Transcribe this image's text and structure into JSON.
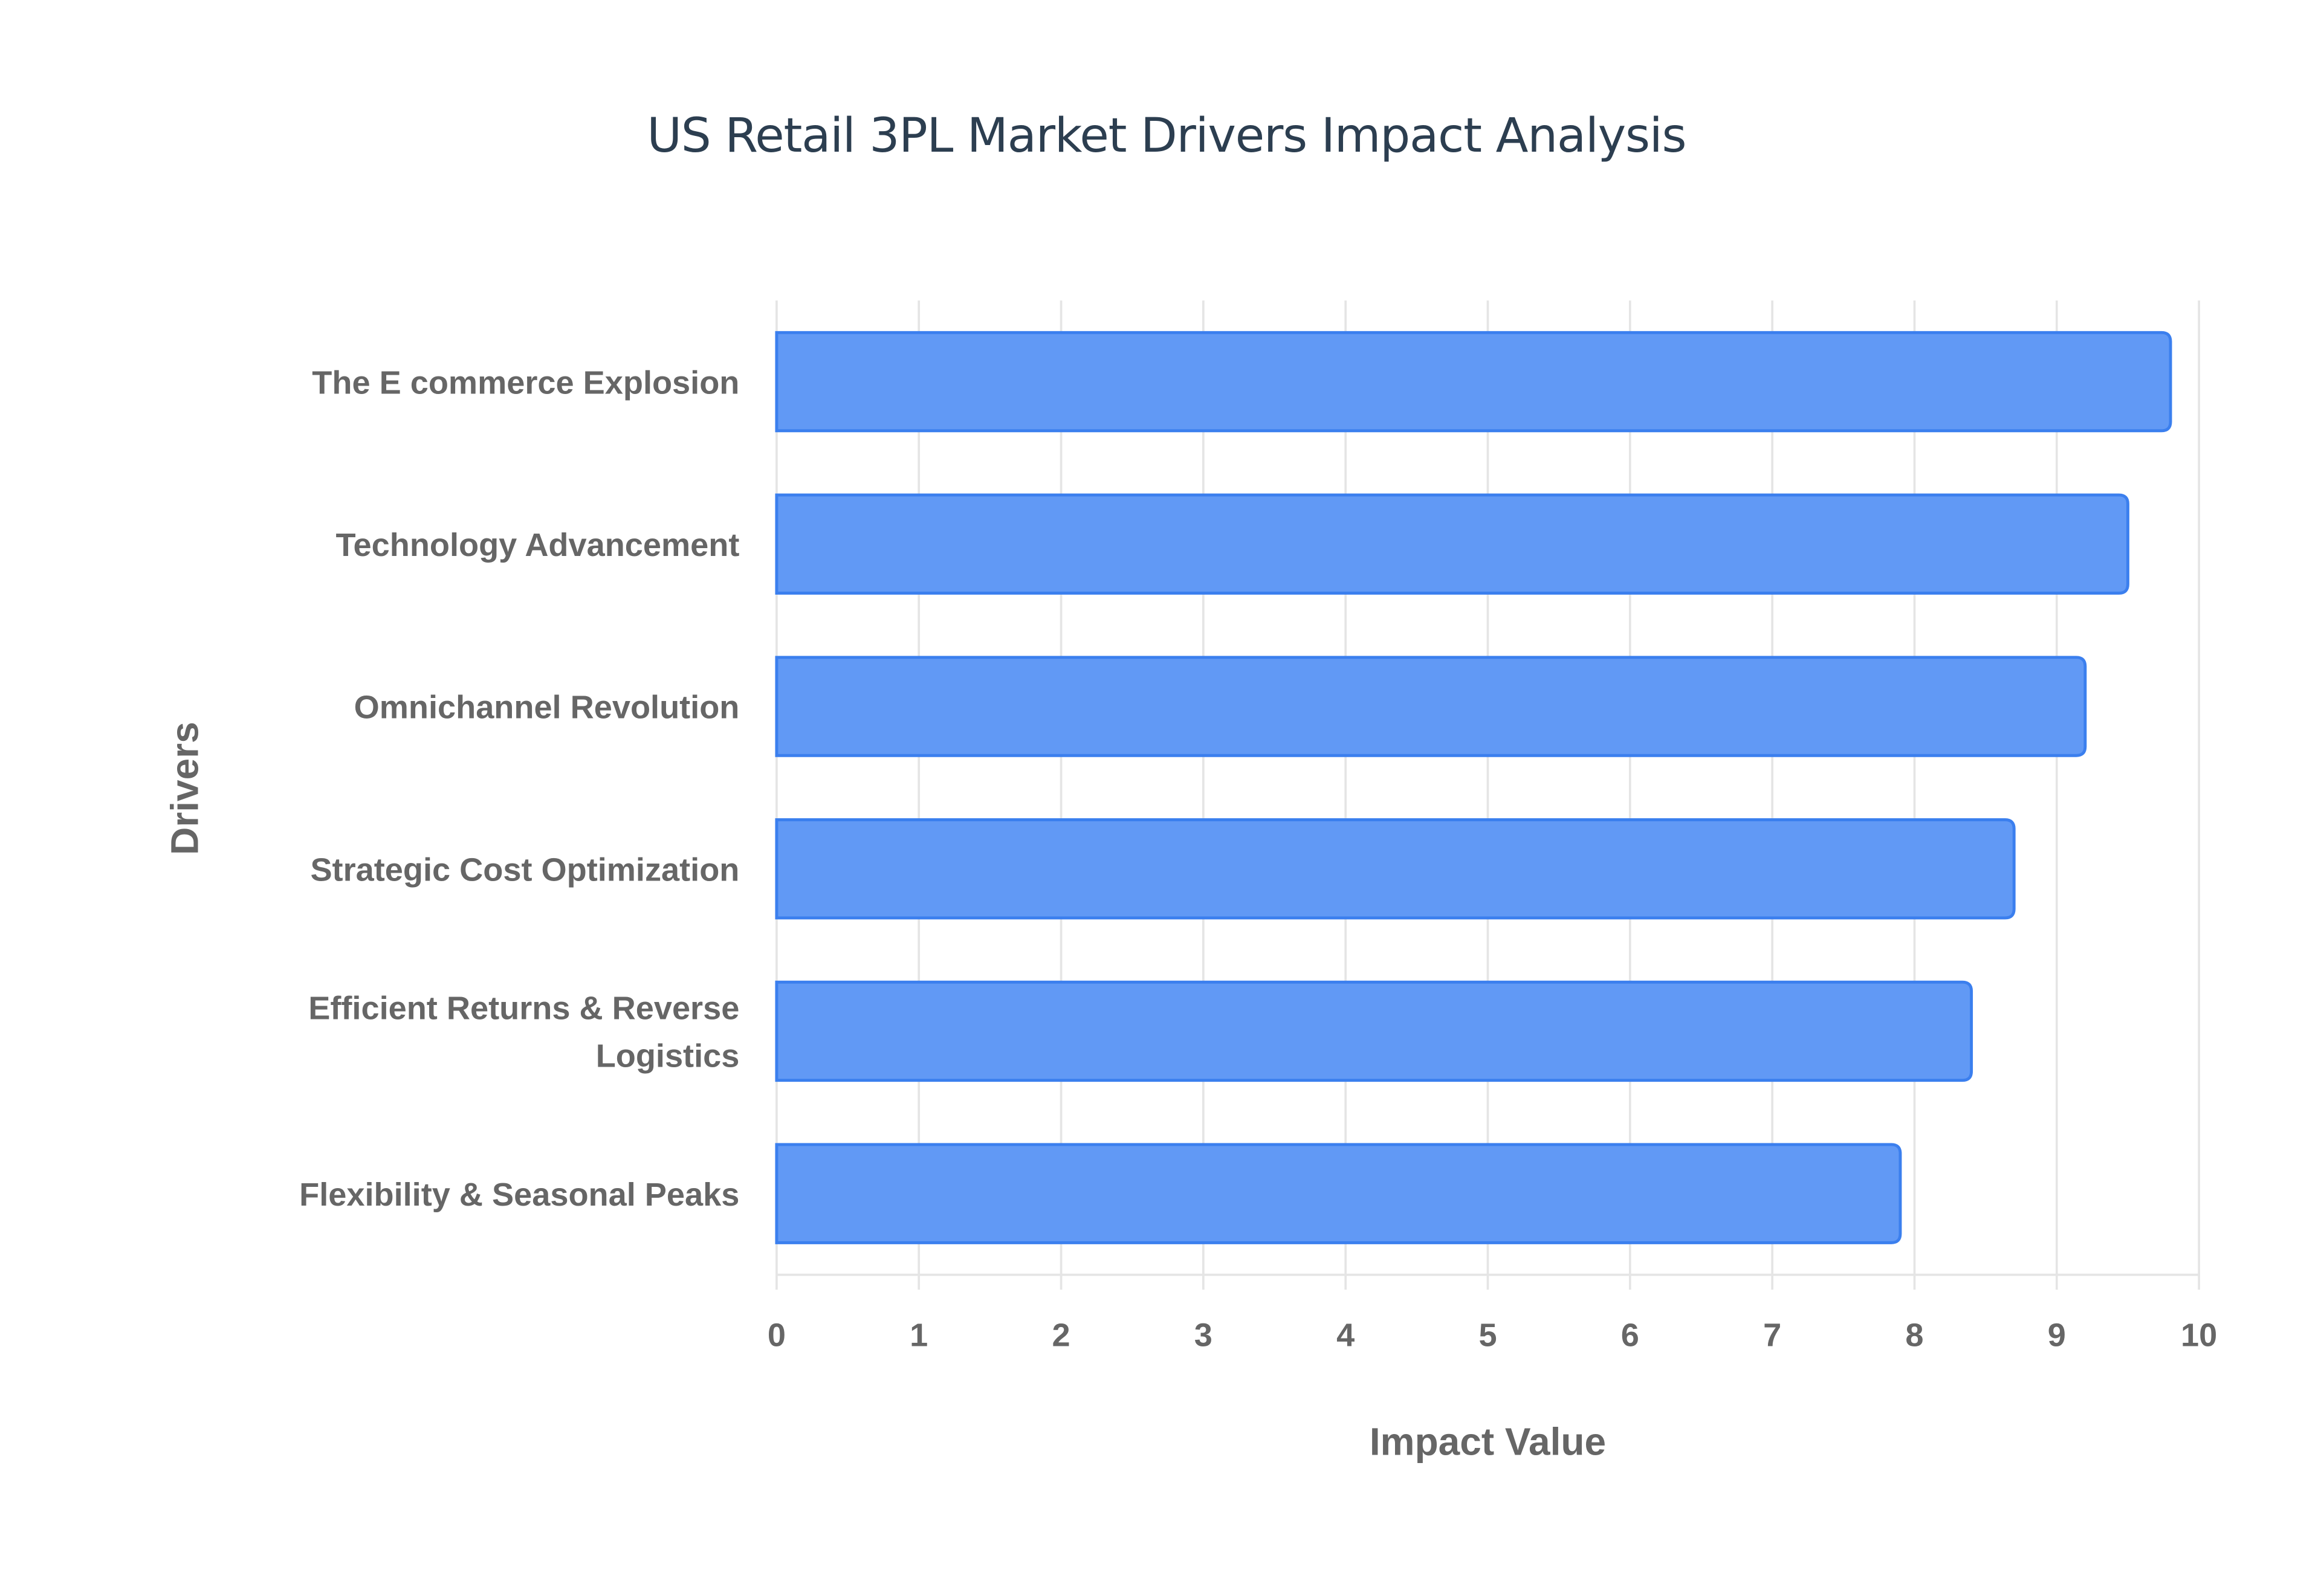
{
  "chart_data": {
    "type": "bar",
    "orientation": "horizontal",
    "title": "US Retail 3PL Market Drivers Impact Analysis",
    "xlabel": "Impact Value",
    "ylabel": "Drivers",
    "categories": [
      "The E commerce Explosion",
      "Technology Advancement",
      "Omnichannel Revolution",
      "Strategic Cost Optimization",
      "Efficient Returns & Reverse Logistics",
      "Flexibility & Seasonal Peaks"
    ],
    "category_lines": [
      [
        "The E commerce Explosion"
      ],
      [
        "Technology Advancement"
      ],
      [
        "Omnichannel Revolution"
      ],
      [
        "Strategic Cost Optimization"
      ],
      [
        "Efficient Returns & Reverse",
        "Logistics"
      ],
      [
        "Flexibility & Seasonal Peaks"
      ]
    ],
    "values": [
      9.8,
      9.5,
      9.2,
      8.7,
      8.4,
      7.9
    ],
    "xlim": [
      0,
      10
    ],
    "xticks": [
      "0",
      "1",
      "2",
      "3",
      "4",
      "5",
      "6",
      "7",
      "8",
      "9",
      "10"
    ],
    "grid": true,
    "legend": "none",
    "colors": {
      "bar_fill": "#6199f5",
      "bar_stroke": "#3b7fee",
      "grid": "#e5e5e5",
      "text": "#666666",
      "title": "#2c3e50"
    }
  }
}
